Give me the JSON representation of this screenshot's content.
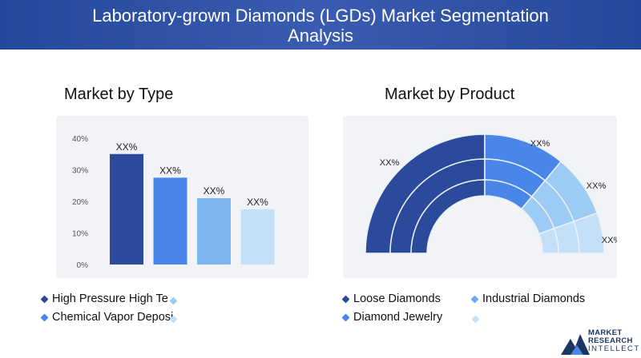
{
  "header": {
    "title_line1": "Laboratory-grown Diamonds (LGDs) Market Segmentation",
    "title_line2": "Analysis"
  },
  "sections": {
    "type_title": "Market by Type",
    "product_title": "Market by Product"
  },
  "chart_data": [
    {
      "type": "bar",
      "title": "Market by Type",
      "categories": [
        "High Pressure High Te",
        "Chemical Vapor Deposi",
        "",
        ""
      ],
      "values": [
        35,
        27.5,
        21,
        17.5
      ],
      "data_labels": [
        "XX%",
        "XX%",
        "XX%",
        "XX%"
      ],
      "colors": [
        "#2b4a9c",
        "#4a86e8",
        "#7fb5f0",
        "#c4e0f8"
      ],
      "y_ticks": [
        "0%",
        "10%",
        "20%",
        "30%",
        "40%"
      ],
      "ylim": [
        0,
        40
      ],
      "grid": false,
      "legend_position": "bottom"
    },
    {
      "type": "pie",
      "title": "Market by Product",
      "categories": [
        "Loose Diamonds",
        "Industrial Diamonds",
        "Diamond Jewelry",
        ""
      ],
      "values": [
        50,
        22,
        17,
        11
      ],
      "data_labels": [
        "XX%",
        "XX%",
        "XX%",
        "XX%"
      ],
      "colors": [
        "#2b4a9c",
        "#4a86e8",
        "#9ccbf3",
        "#c4e0f8"
      ],
      "legend_position": "bottom"
    }
  ],
  "legend": {
    "type": [
      {
        "label": "High Pressure High Te",
        "color": "#2b4a9c"
      },
      {
        "label": "Chemical Vapor Deposi",
        "color": "#4a86e8"
      },
      {
        "label": "",
        "color": "#9ccbf3"
      },
      {
        "label": "",
        "color": "#c4e0f8"
      }
    ],
    "product": [
      {
        "label": "Loose Diamonds",
        "color": "#2b4a9c"
      },
      {
        "label": "Industrial Diamonds",
        "color": "#6aaaf0"
      },
      {
        "label": "Diamond Jewelry",
        "color": "#4a86e8"
      },
      {
        "label": "",
        "color": "#c4e0f8"
      }
    ]
  },
  "logo": {
    "line1": "MARKET",
    "line2": "RESEARCH",
    "line3": "INTELLECT",
    "icon": "mountain-logo-icon"
  }
}
